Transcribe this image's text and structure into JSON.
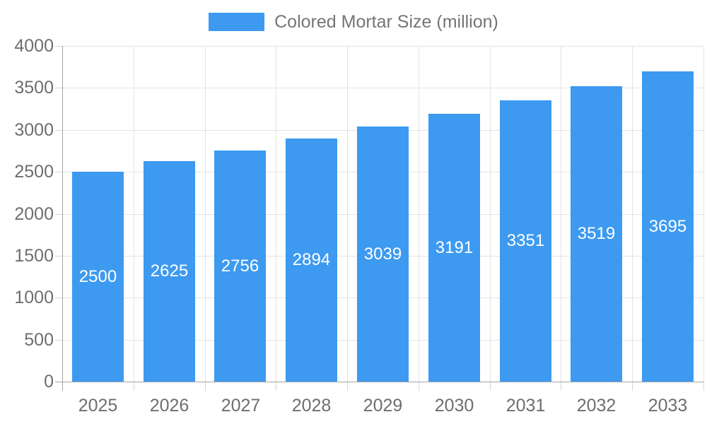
{
  "chart_data": {
    "type": "bar",
    "title": "Colored Mortar Size (million)",
    "categories": [
      "2025",
      "2026",
      "2027",
      "2028",
      "2029",
      "2030",
      "2031",
      "2032",
      "2033"
    ],
    "values": [
      2500,
      2625,
      2756,
      2894,
      3039,
      3191,
      3351,
      3519,
      3695
    ],
    "xlabel": "",
    "ylabel": "",
    "ylim": [
      0,
      4000
    ],
    "yticks": [
      0,
      500,
      1000,
      1500,
      2000,
      2500,
      3000,
      3500,
      4000
    ],
    "grid": true,
    "legend_position": "top-center",
    "value_label_position": "inside-center",
    "colors": {
      "bar": "#3D9AF0",
      "value_label": "#FFFFFF",
      "axis_label": "#6E6E6E",
      "legend_label": "#757575",
      "gridline": "#E3E3E3",
      "tick_mark": "#D6D6D6",
      "axis_line": "#A5A5A5",
      "background": "#FFFFFF"
    }
  }
}
